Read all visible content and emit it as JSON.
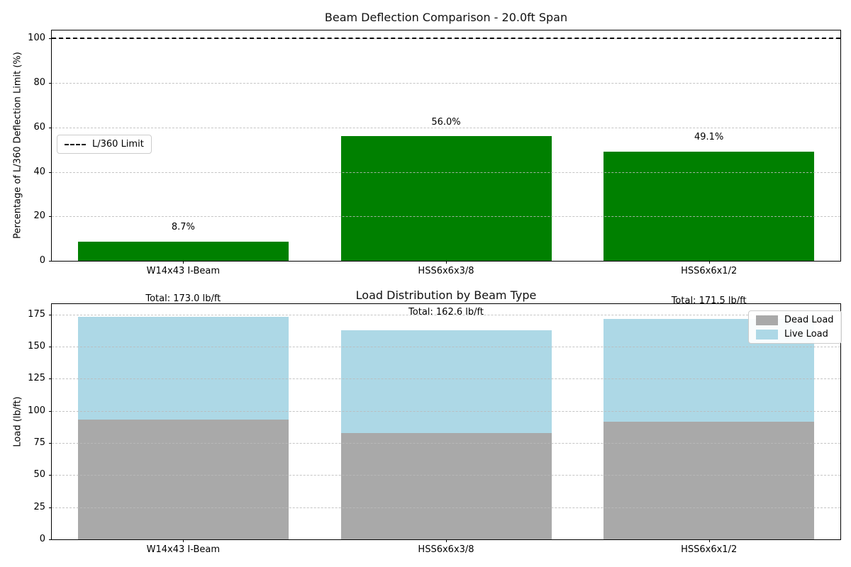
{
  "chart_data": [
    {
      "type": "bar",
      "title": "Beam Deflection Comparison - 20.0ft Span",
      "xlabel": "",
      "ylabel": "Percentage of L/360 Deflection Limit (%)",
      "categories": [
        "W14x43 I-Beam",
        "HSS6x6x3/8",
        "HSS6x6x1/2"
      ],
      "values": [
        8.7,
        56.0,
        49.1
      ],
      "bar_labels": [
        "8.7%",
        "56.0%",
        "49.1%"
      ],
      "bar_color": "#008000",
      "yticks": [
        0,
        20,
        40,
        60,
        80,
        100
      ],
      "ylim": [
        0,
        103.6
      ],
      "grid": "dashed horizontal gridlines",
      "reference_line": {
        "value": 100,
        "style": "dashed",
        "color": "#000000"
      },
      "legend_position": "center-left",
      "legend": [
        {
          "label": "L/360 Limit",
          "marker": "dashed-line",
          "color": "#000000"
        }
      ]
    },
    {
      "type": "stacked-bar",
      "title": "Load Distribution by Beam Type",
      "xlabel": "",
      "ylabel": "Load (lb/ft)",
      "categories": [
        "W14x43 I-Beam",
        "HSS6x6x3/8",
        "HSS6x6x1/2"
      ],
      "series": [
        {
          "name": "Dead Load",
          "values": [
            93.0,
            82.6,
            91.5
          ],
          "color": "#a9a9a9"
        },
        {
          "name": "Live Load",
          "values": [
            80.0,
            80.0,
            80.0
          ],
          "color": "#add8e6"
        }
      ],
      "totals": [
        173.0,
        162.6,
        171.5
      ],
      "total_labels": [
        "Total: 173.0 lb/ft",
        "Total: 162.6 lb/ft",
        "Total: 171.5 lb/ft"
      ],
      "yticks": [
        0,
        25,
        50,
        75,
        100,
        125,
        150,
        175
      ],
      "ylim": [
        0,
        183
      ],
      "grid": "dashed horizontal gridlines",
      "legend_position": "upper-right",
      "legend": [
        {
          "label": "Dead Load",
          "marker": "patch",
          "color": "#a9a9a9"
        },
        {
          "label": "Live Load",
          "marker": "patch",
          "color": "#add8e6"
        }
      ]
    }
  ]
}
